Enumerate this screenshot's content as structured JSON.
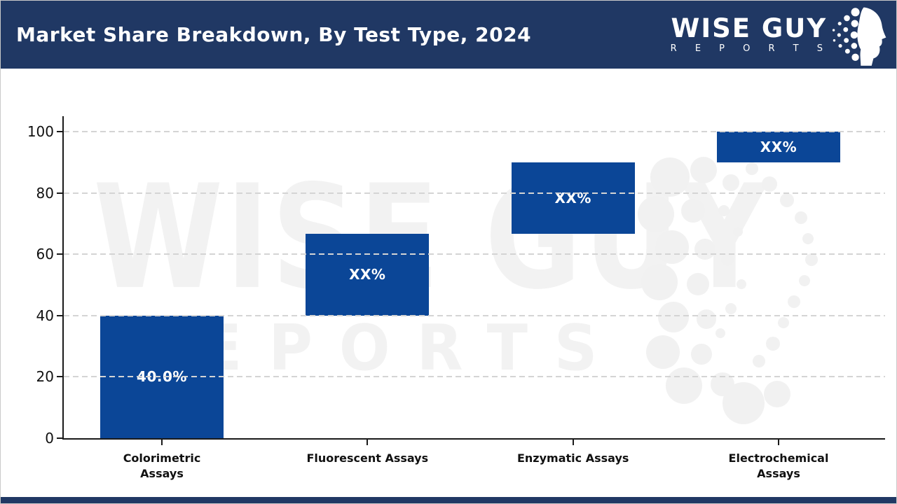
{
  "header": {
    "title": "Market Share Breakdown, By Test Type, 2024",
    "brand": {
      "name": "WISE GUY",
      "sub": "R E P O R T S"
    }
  },
  "watermark": {
    "line1": "WISE GUY",
    "line2": "REPORTS"
  },
  "colors": {
    "header_bg": "#203864",
    "footer_bg": "#203864",
    "bar": "#0b4697",
    "bar_label": "#ffffff",
    "grid": "#d4d4d4",
    "axis": "#1a1a1a",
    "watermark": "#f2f2f2"
  },
  "chart_data": {
    "type": "bar",
    "variant": "waterfall",
    "title": "Market Share Breakdown, By Test Type, 2024",
    "categories": [
      "Colorimetric\nAssays",
      "Fluorescent Assays",
      "Enzymatic Assays",
      "Electrochemical\nAssays"
    ],
    "segments": [
      {
        "category": "Colorimetric Assays",
        "start": 0,
        "end": 40,
        "label": "40.0%"
      },
      {
        "category": "Fluorescent Assays",
        "start": 40,
        "end": 66.7,
        "label": "XX%"
      },
      {
        "category": "Enzymatic Assays",
        "start": 66.7,
        "end": 90,
        "label": "XX%"
      },
      {
        "category": "Electrochemical Assays",
        "start": 90,
        "end": 100,
        "label": "XX%"
      }
    ],
    "ylim": [
      0,
      100
    ],
    "yticks": [
      0,
      20,
      40,
      60,
      80,
      100
    ],
    "xlabel": "",
    "ylabel": "",
    "grid": "horizontal-dashed-above-bars",
    "legend": "none"
  }
}
